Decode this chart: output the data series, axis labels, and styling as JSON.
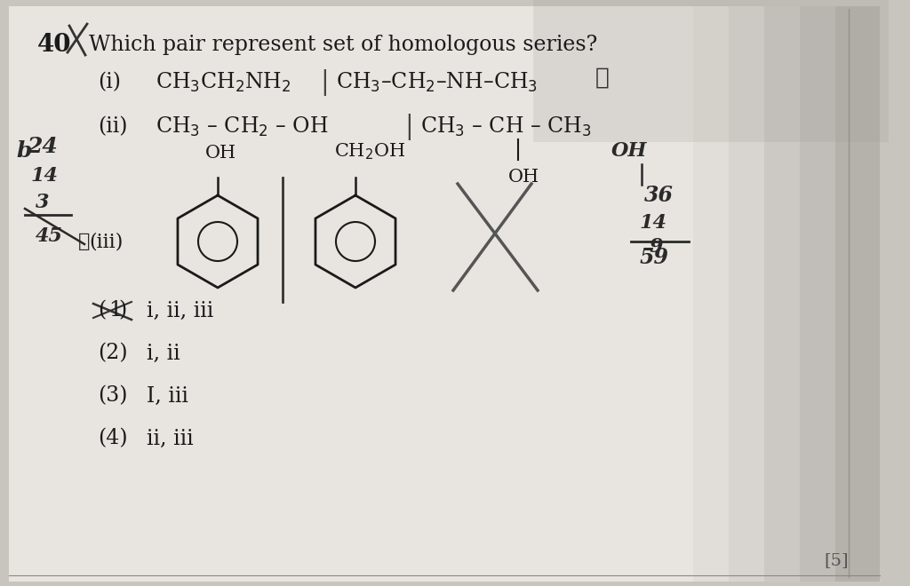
{
  "bg_color": "#c8c4be",
  "paper_color": "#e8e5e0",
  "paper_color2": "#d0ccc6",
  "shadow_color": "#9a9690",
  "text_color": "#1a1a1a",
  "hw_color": "#2a2a2a",
  "gray_color": "#666666",
  "question_num": "40",
  "question_text": "Which pair represent set of homologous series?",
  "option1": "i, ii, iii",
  "option2": "i, ii",
  "option3": "I, iii",
  "option4": "ii, iii",
  "fs_main": 17,
  "fs_hw": 16
}
